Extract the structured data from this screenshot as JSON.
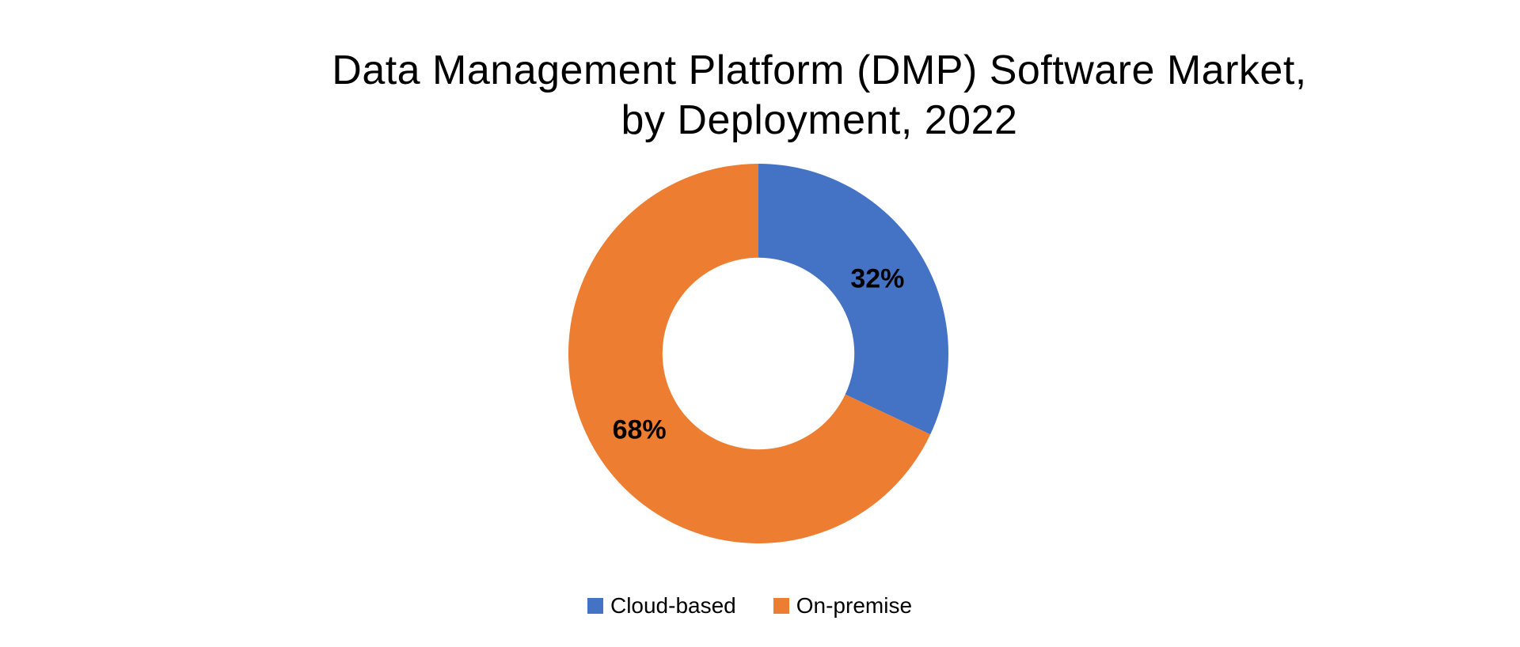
{
  "page": {
    "background": "#FFFFFF"
  },
  "title": {
    "line1": "Data Management Platform (DMP) Software Market,",
    "line2": "by Deployment, 2022"
  },
  "chart_data": {
    "type": "pie",
    "subtype": "donut",
    "title": "Data Management Platform (DMP) Software Market, by Deployment, 2022",
    "categories": [
      "Cloud-based",
      "On-premise"
    ],
    "values": [
      32,
      68
    ],
    "unit": "%",
    "data_labels": [
      "32%",
      "68%"
    ],
    "colors": [
      "#4472C4",
      "#ED7D31"
    ],
    "label_color": "#000000",
    "start_angle_deg": 0,
    "direction": "clockwise",
    "inner_radius_ratio": 0.505,
    "grid": false,
    "legend_position": "bottom",
    "legend": [
      {
        "label": "Cloud-based",
        "color": "#4472C4"
      },
      {
        "label": "On-premise",
        "color": "#ED7D31"
      }
    ]
  }
}
